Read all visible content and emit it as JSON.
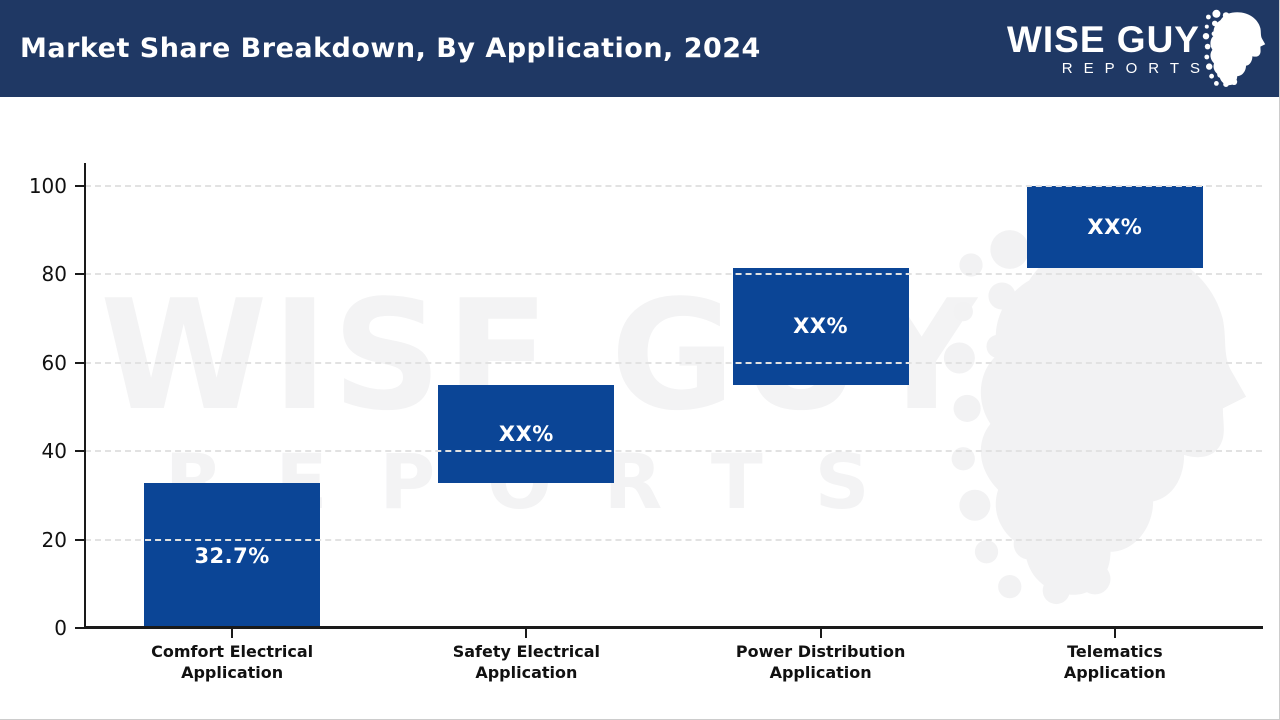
{
  "header": {
    "title": "Market Share Breakdown, By Application, 2024",
    "bg_color": "#1f3864",
    "logo": {
      "line1": "WISE GUY",
      "line2": "REPORTS"
    }
  },
  "watermark": {
    "line1": "WISE GUY",
    "line2": "REPORTS"
  },
  "chart_data": {
    "type": "bar",
    "subtype": "waterfall-stacked-segments",
    "title": "Market Share Breakdown, By Application, 2024",
    "xlabel": "",
    "ylabel": "",
    "ylim": [
      0,
      105
    ],
    "yticks": [
      0,
      20,
      40,
      60,
      80,
      100
    ],
    "grid": "horizontal-dashed",
    "legend": "none",
    "bar_color": "#0b4596",
    "value_label_color": "#ffffff",
    "categories": [
      "Comfort Electrical Application",
      "Safety Electrical Application",
      "Power Distribution Application",
      "Telematics Application"
    ],
    "bars": [
      {
        "category_lines": [
          "Comfort Electrical",
          "Application"
        ],
        "label": "32.7%",
        "start": 0,
        "end": 32.7
      },
      {
        "category_lines": [
          "Safety Electrical",
          "Application"
        ],
        "label": "XX%",
        "start": 32.7,
        "end": 55.0
      },
      {
        "category_lines": [
          "Power Distribution",
          "Application"
        ],
        "label": "XX%",
        "start": 55.0,
        "end": 81.3
      },
      {
        "category_lines": [
          "Telematics",
          "Application"
        ],
        "label": "XX%",
        "start": 81.3,
        "end": 100
      }
    ]
  }
}
